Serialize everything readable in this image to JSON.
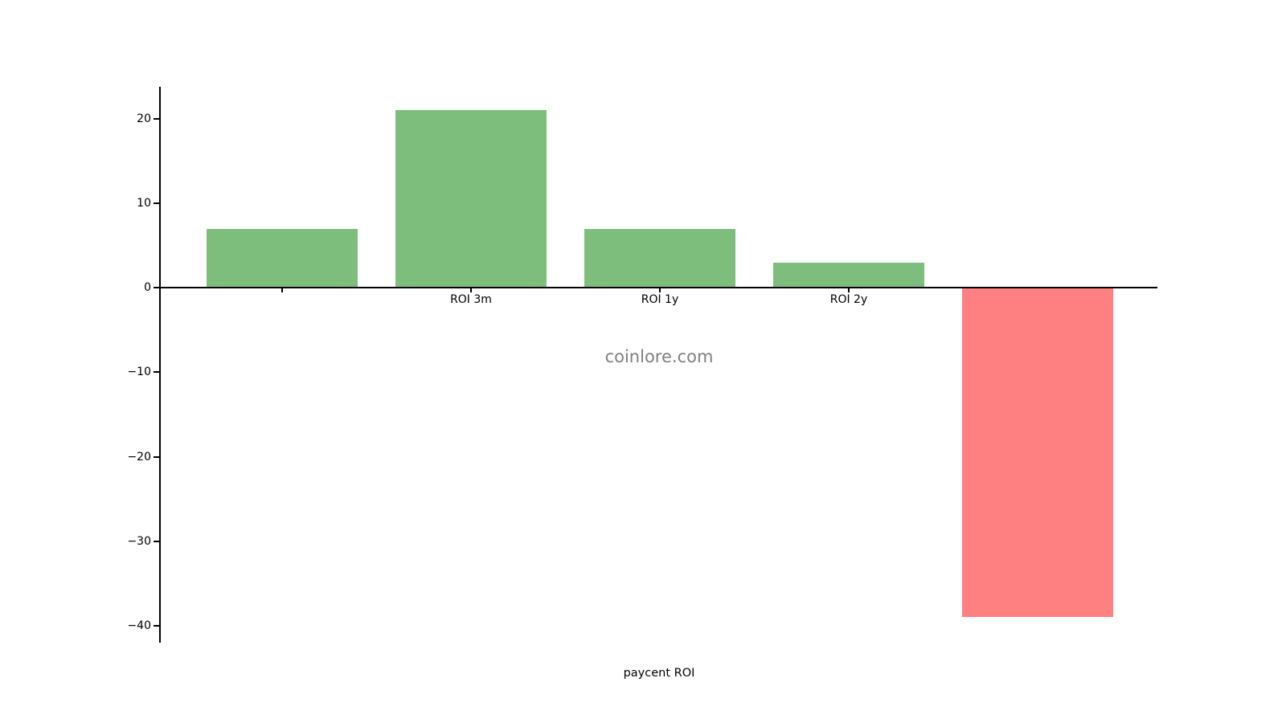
{
  "figure": {
    "background": "#ffffff",
    "watermark": "coinlore.com",
    "watermark_color": "#808080"
  },
  "chart_data": {
    "type": "bar",
    "title": "",
    "xlabel": "paycent ROI",
    "ylabel": "",
    "categories": [
      "",
      "ROI 3m",
      "ROI 1y",
      "ROI 2y",
      ""
    ],
    "values": [
      7,
      21,
      7,
      3,
      -39
    ],
    "bar_colors": [
      "#7dbe7d",
      "#7dbe7d",
      "#7dbe7d",
      "#7dbe7d",
      "#ff8080"
    ],
    "positive_color": "#7dbe7d",
    "negative_color": "#ff8080",
    "ylim": [
      -42,
      23.8
    ],
    "yticks": [
      {
        "value": 20,
        "label": "20"
      },
      {
        "value": 10,
        "label": "10"
      },
      {
        "value": 0,
        "label": "0"
      },
      {
        "value": -10,
        "label": "−10"
      },
      {
        "value": -20,
        "label": "−20"
      },
      {
        "value": -30,
        "label": "−30"
      },
      {
        "value": -40,
        "label": "−40"
      }
    ],
    "x_ticks": [
      {
        "index": 0,
        "label": ""
      },
      {
        "index": 1,
        "label": "ROI 3m"
      },
      {
        "index": 2,
        "label": "ROI 1y"
      },
      {
        "index": 3,
        "label": "ROI 2y"
      }
    ],
    "grid": false,
    "legend": null,
    "axis_color": "#000000",
    "tick_label_color": "#000000"
  }
}
